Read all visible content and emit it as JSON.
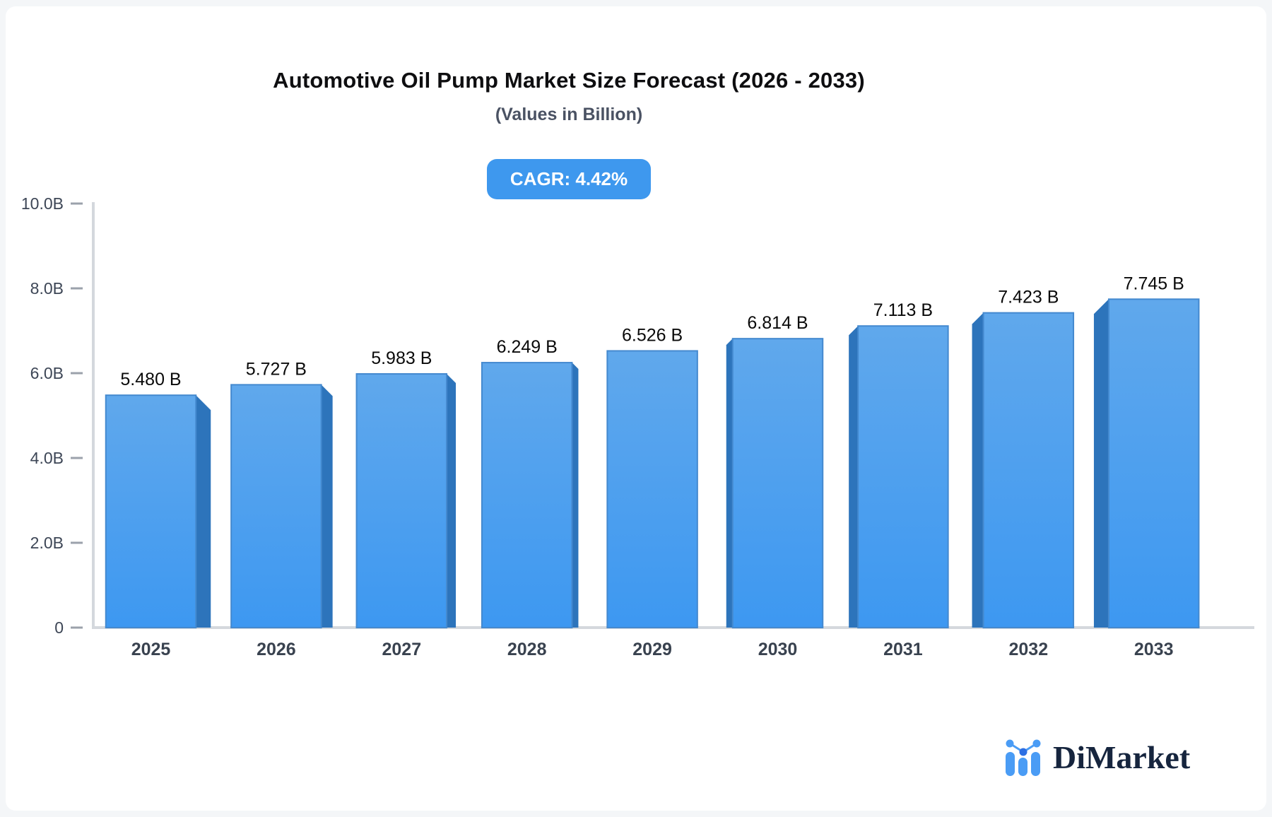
{
  "page": {
    "background": "#f4f6f8",
    "card_background": "#ffffff"
  },
  "header": {
    "title": "Automotive Oil Pump Market Size Forecast (2026 - 2033)",
    "subtitle": "(Values in Billion)",
    "badge_label": "CAGR: 4.42%",
    "badge_color": "#3e98ee"
  },
  "chart_data": {
    "type": "bar",
    "style": "3d-perspective-bars",
    "categories": [
      "2025",
      "2026",
      "2027",
      "2028",
      "2029",
      "2030",
      "2031",
      "2032",
      "2033"
    ],
    "values": [
      5.48,
      5.727,
      5.983,
      6.249,
      6.526,
      6.814,
      7.113,
      7.423,
      7.745
    ],
    "value_labels": [
      "5.480 B",
      "5.727 B",
      "5.983 B",
      "6.249 B",
      "6.526 B",
      "6.814 B",
      "7.113 B",
      "7.423 B",
      "7.745 B"
    ],
    "title": "Automotive Oil Pump Market Size Forecast (2026 - 2033)",
    "subtitle": "(Values in Billion)",
    "annotation": "CAGR: 4.42%",
    "xlabel": "",
    "ylabel": "",
    "ylim": [
      0,
      10
    ],
    "y_ticks": [
      0,
      2,
      4,
      6,
      8,
      10
    ],
    "y_tick_labels": [
      "0",
      "2.0B",
      "4.0B",
      "6.0B",
      "8.0B",
      "10.0B"
    ],
    "grid": false,
    "legend": false,
    "colors": {
      "bar_face_top": "#60a8ec",
      "bar_face_bottom": "#3d98f1",
      "bar_side": "#2d74bb",
      "bar_edge": "#4489cf",
      "axis_line": "#d4d8dd",
      "tick_dash": "#9ba1ab",
      "tick_label": "#3d4656",
      "x_label": "#39424f",
      "value_label": "#0a0a0a"
    }
  },
  "footer": {
    "brand": "DiMarket",
    "brand_color": "#16253e",
    "icon": "bar-chart-logo-icon",
    "icon_color": "#4a9cf5",
    "icon_accent": "#2d6fe3"
  }
}
